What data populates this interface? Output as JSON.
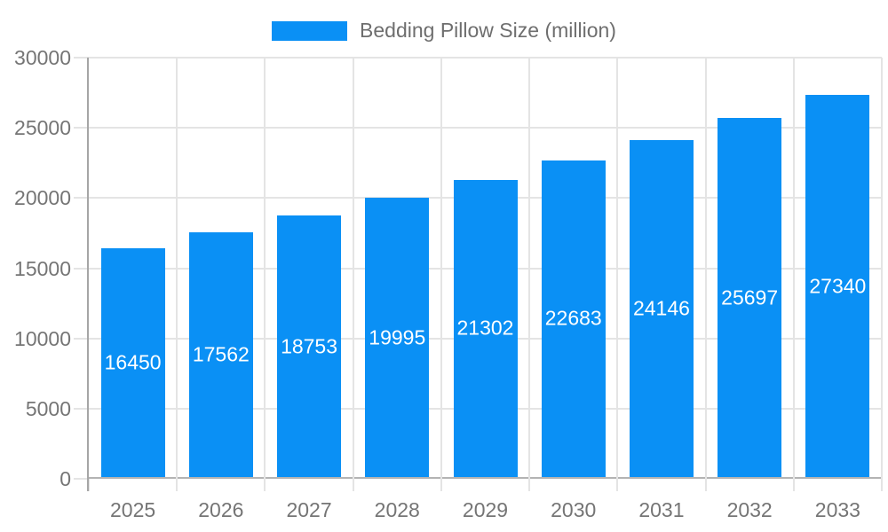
{
  "legend": {
    "label": "Bedding Pillow Size (million)"
  },
  "chart_data": {
    "type": "bar",
    "title": "Bedding Pillow Size (million)",
    "categories": [
      "2025",
      "2026",
      "2027",
      "2028",
      "2029",
      "2030",
      "2031",
      "2032",
      "2033"
    ],
    "values": [
      16450,
      17562,
      18753,
      19995,
      21302,
      22683,
      24146,
      25697,
      27340
    ],
    "xlabel": "",
    "ylabel": "",
    "ylim": [
      0,
      30000
    ],
    "ytick_step": 5000,
    "ytick_labels": [
      "0",
      "5000",
      "10000",
      "15000",
      "20000",
      "25000",
      "30000"
    ],
    "grid": true,
    "value_labels": "inside-bars-centered",
    "legend_position": "top-center",
    "colors": {
      "bar": "#0a90f5",
      "grid": "#e4e4e4",
      "axis": "#a6a6a6",
      "zero_line": "#b3b3b3",
      "tick_text": "#757575",
      "legend_text": "#6e6e6e",
      "bar_label_text": "#ffffff",
      "background": "#ffffff"
    }
  }
}
